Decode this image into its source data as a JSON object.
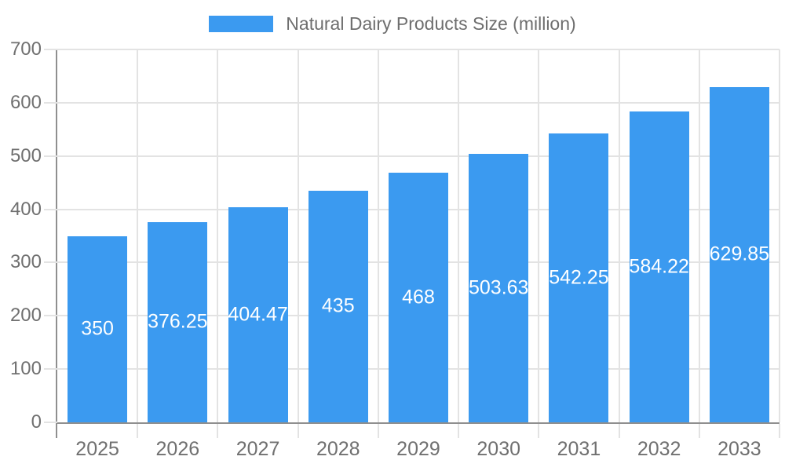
{
  "legend": {
    "label": "Natural Dairy Products Size (million)"
  },
  "colors": {
    "bar": "#3B9AF0",
    "grid": "#E3E3E3",
    "axis": "#8F8F8F",
    "tick_text": "#707070",
    "legend_text": "#6E6E6E",
    "value_label": "#FFFFFF",
    "background": "#FFFFFF"
  },
  "chart_data": {
    "type": "bar",
    "title": "Natural Dairy Products Size (million)",
    "categories": [
      "2025",
      "2026",
      "2027",
      "2028",
      "2029",
      "2030",
      "2031",
      "2032",
      "2033"
    ],
    "values": [
      350,
      376.25,
      404.47,
      435,
      468,
      503.63,
      542.25,
      584.22,
      629.85
    ],
    "bar_labels": [
      "350",
      "376.25",
      "404.47",
      "435",
      "468",
      "503.63",
      "542.25",
      "584.22",
      "629.85"
    ],
    "yticks": [
      "0",
      "100",
      "200",
      "300",
      "400",
      "500",
      "600",
      "700"
    ],
    "ytick_interval": 100,
    "ylim": [
      0,
      700
    ],
    "xlabel": "",
    "ylabel": "",
    "grid": true,
    "legend_position": "top-center",
    "bar_label_position": "inside-center"
  }
}
